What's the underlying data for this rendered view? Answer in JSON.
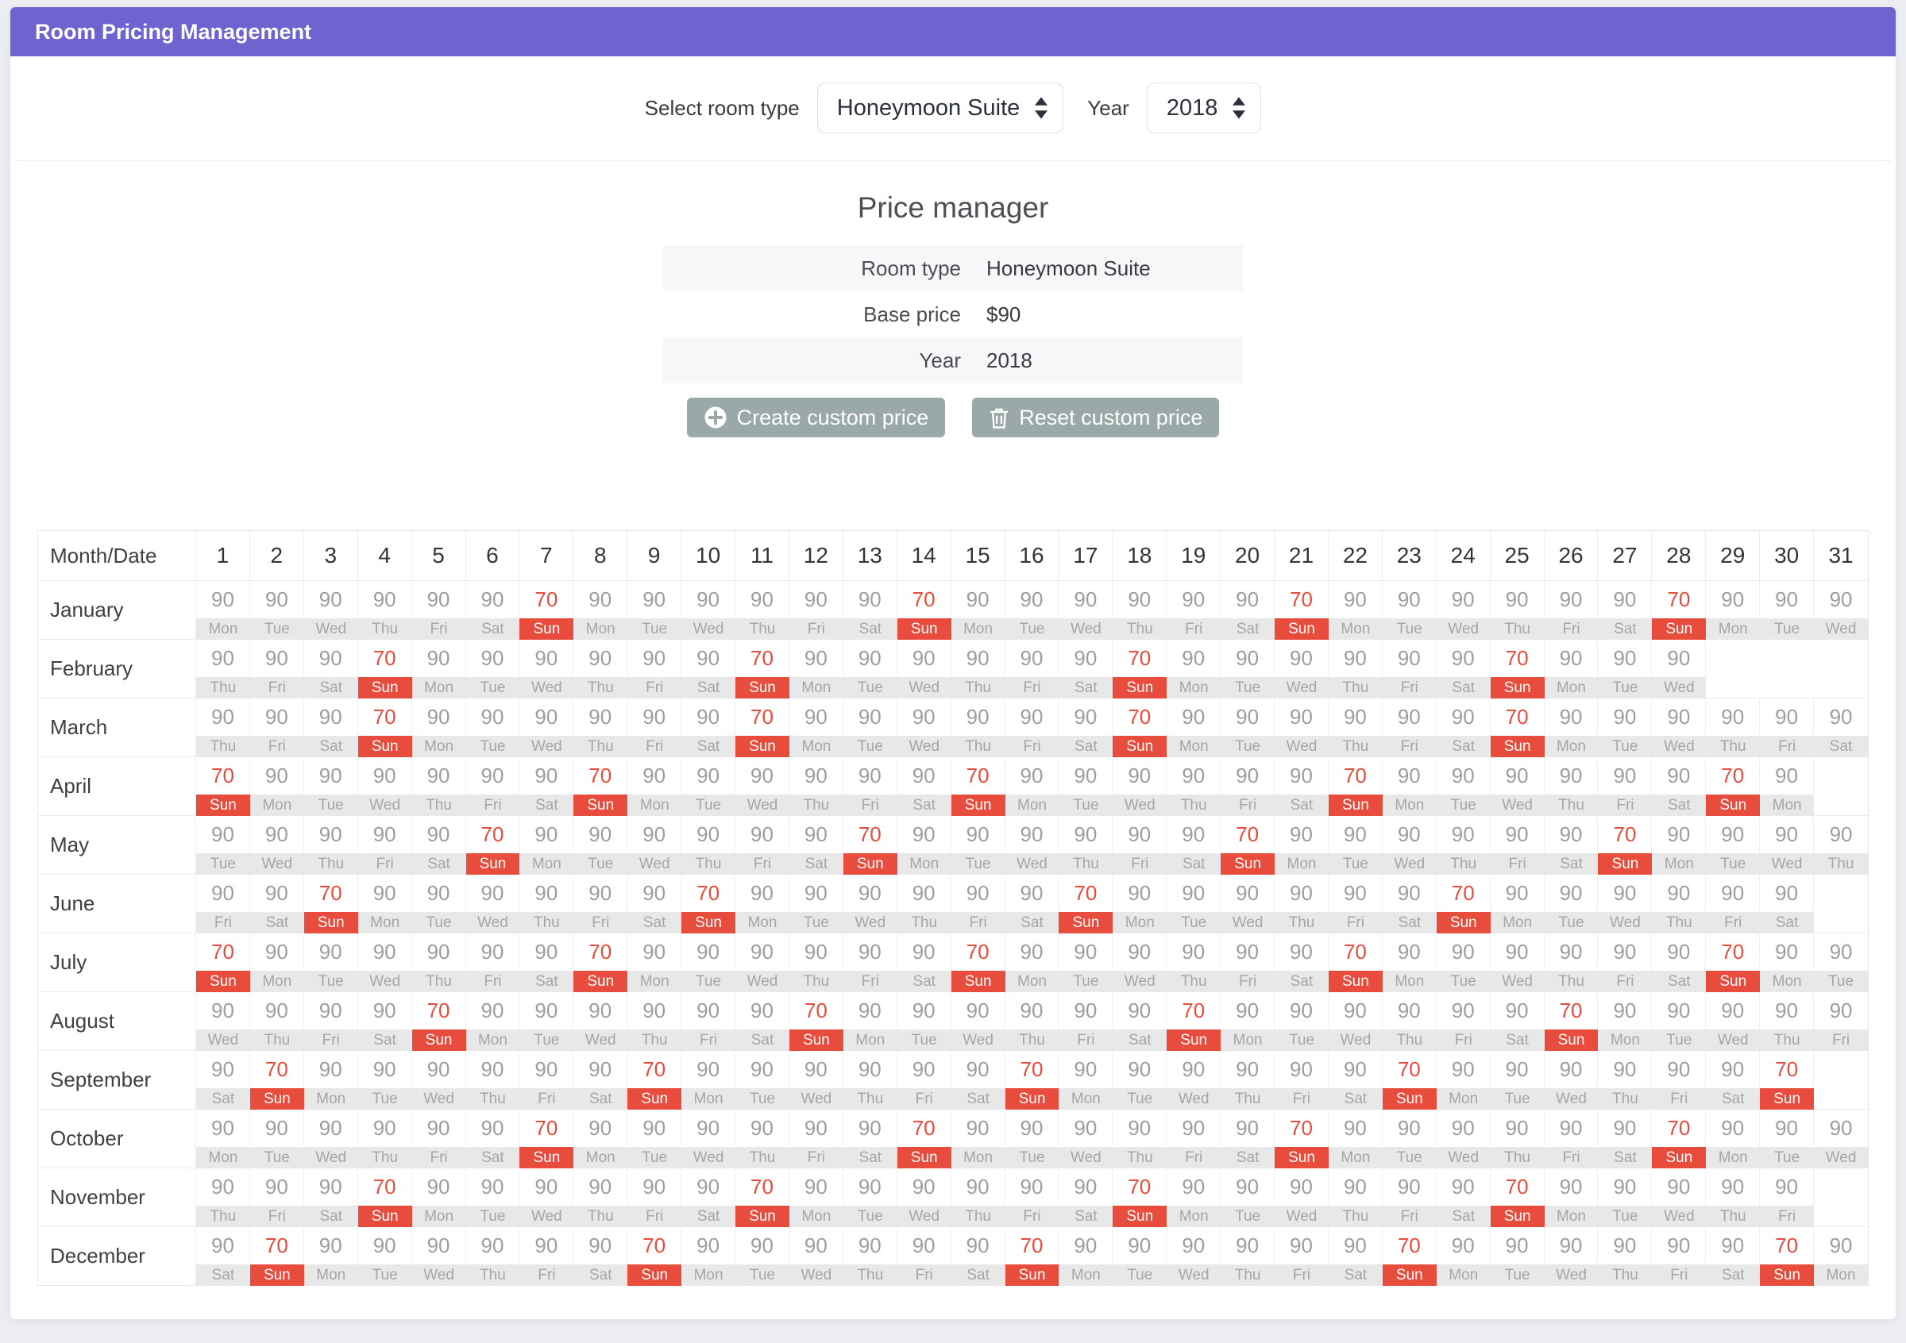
{
  "title_bar": {
    "title": "Room Pricing Management"
  },
  "controls": {
    "room_type_label": "Select room type",
    "room_type_value": "Honeymoon Suite",
    "year_label": "Year",
    "year_value": "2018"
  },
  "price_manager": {
    "heading": "Price manager",
    "rows": [
      {
        "label": "Room type",
        "value": "Honeymoon Suite"
      },
      {
        "label": "Base price",
        "value": "$90"
      },
      {
        "label": "Year",
        "value": "2018"
      }
    ],
    "buttons": {
      "create": "Create custom price",
      "reset": "Reset custom price"
    }
  },
  "calendar": {
    "corner_label": "Month/Date",
    "day_numbers": [
      1,
      2,
      3,
      4,
      5,
      6,
      7,
      8,
      9,
      10,
      11,
      12,
      13,
      14,
      15,
      16,
      17,
      18,
      19,
      20,
      21,
      22,
      23,
      24,
      25,
      26,
      27,
      28,
      29,
      30,
      31
    ],
    "base_price": 90,
    "sunday_price": 70,
    "months": [
      {
        "name": "January",
        "dows": [
          "Mon",
          "Tue",
          "Wed",
          "Thu",
          "Fri",
          "Sat",
          "Sun",
          "Mon",
          "Tue",
          "Wed",
          "Thu",
          "Fri",
          "Sat",
          "Sun",
          "Mon",
          "Tue",
          "Wed",
          "Thu",
          "Fri",
          "Sat",
          "Sun",
          "Mon",
          "Tue",
          "Wed",
          "Thu",
          "Fri",
          "Sat",
          "Sun",
          "Mon",
          "Tue",
          "Wed"
        ],
        "prices": [
          90,
          90,
          90,
          90,
          90,
          90,
          70,
          90,
          90,
          90,
          90,
          90,
          90,
          70,
          90,
          90,
          90,
          90,
          90,
          90,
          70,
          90,
          90,
          90,
          90,
          90,
          90,
          70,
          90,
          90,
          90
        ]
      },
      {
        "name": "February",
        "dows": [
          "Thu",
          "Fri",
          "Sat",
          "Sun",
          "Mon",
          "Tue",
          "Wed",
          "Thu",
          "Fri",
          "Sat",
          "Sun",
          "Mon",
          "Tue",
          "Wed",
          "Thu",
          "Fri",
          "Sat",
          "Sun",
          "Mon",
          "Tue",
          "Wed",
          "Thu",
          "Fri",
          "Sat",
          "Sun",
          "Mon",
          "Tue",
          "Wed"
        ],
        "prices": [
          90,
          90,
          90,
          70,
          90,
          90,
          90,
          90,
          90,
          90,
          70,
          90,
          90,
          90,
          90,
          90,
          90,
          70,
          90,
          90,
          90,
          90,
          90,
          90,
          70,
          90,
          90,
          90
        ]
      },
      {
        "name": "March",
        "dows": [
          "Thu",
          "Fri",
          "Sat",
          "Sun",
          "Mon",
          "Tue",
          "Wed",
          "Thu",
          "Fri",
          "Sat",
          "Sun",
          "Mon",
          "Tue",
          "Wed",
          "Thu",
          "Fri",
          "Sat",
          "Sun",
          "Mon",
          "Tue",
          "Wed",
          "Thu",
          "Fri",
          "Sat",
          "Sun",
          "Mon",
          "Tue",
          "Wed",
          "Thu",
          "Fri",
          "Sat"
        ],
        "prices": [
          90,
          90,
          90,
          70,
          90,
          90,
          90,
          90,
          90,
          90,
          70,
          90,
          90,
          90,
          90,
          90,
          90,
          70,
          90,
          90,
          90,
          90,
          90,
          90,
          70,
          90,
          90,
          90,
          90,
          90,
          90
        ]
      },
      {
        "name": "April",
        "dows": [
          "Sun",
          "Mon",
          "Tue",
          "Wed",
          "Thu",
          "Fri",
          "Sat",
          "Sun",
          "Mon",
          "Tue",
          "Wed",
          "Thu",
          "Fri",
          "Sat",
          "Sun",
          "Mon",
          "Tue",
          "Wed",
          "Thu",
          "Fri",
          "Sat",
          "Sun",
          "Mon",
          "Tue",
          "Wed",
          "Thu",
          "Fri",
          "Sat",
          "Sun",
          "Mon"
        ],
        "prices": [
          70,
          90,
          90,
          90,
          90,
          90,
          90,
          70,
          90,
          90,
          90,
          90,
          90,
          90,
          70,
          90,
          90,
          90,
          90,
          90,
          90,
          70,
          90,
          90,
          90,
          90,
          90,
          90,
          70,
          90
        ]
      },
      {
        "name": "May",
        "dows": [
          "Tue",
          "Wed",
          "Thu",
          "Fri",
          "Sat",
          "Sun",
          "Mon",
          "Tue",
          "Wed",
          "Thu",
          "Fri",
          "Sat",
          "Sun",
          "Mon",
          "Tue",
          "Wed",
          "Thu",
          "Fri",
          "Sat",
          "Sun",
          "Mon",
          "Tue",
          "Wed",
          "Thu",
          "Fri",
          "Sat",
          "Sun",
          "Mon",
          "Tue",
          "Wed",
          "Thu"
        ],
        "prices": [
          90,
          90,
          90,
          90,
          90,
          70,
          90,
          90,
          90,
          90,
          90,
          90,
          70,
          90,
          90,
          90,
          90,
          90,
          90,
          70,
          90,
          90,
          90,
          90,
          90,
          90,
          70,
          90,
          90,
          90,
          90
        ]
      },
      {
        "name": "June",
        "dows": [
          "Fri",
          "Sat",
          "Sun",
          "Mon",
          "Tue",
          "Wed",
          "Thu",
          "Fri",
          "Sat",
          "Sun",
          "Mon",
          "Tue",
          "Wed",
          "Thu",
          "Fri",
          "Sat",
          "Sun",
          "Mon",
          "Tue",
          "Wed",
          "Thu",
          "Fri",
          "Sat",
          "Sun",
          "Mon",
          "Tue",
          "Wed",
          "Thu",
          "Fri",
          "Sat"
        ],
        "prices": [
          90,
          90,
          70,
          90,
          90,
          90,
          90,
          90,
          90,
          70,
          90,
          90,
          90,
          90,
          90,
          90,
          70,
          90,
          90,
          90,
          90,
          90,
          90,
          70,
          90,
          90,
          90,
          90,
          90,
          90
        ]
      },
      {
        "name": "July",
        "dows": [
          "Sun",
          "Mon",
          "Tue",
          "Wed",
          "Thu",
          "Fri",
          "Sat",
          "Sun",
          "Mon",
          "Tue",
          "Wed",
          "Thu",
          "Fri",
          "Sat",
          "Sun",
          "Mon",
          "Tue",
          "Wed",
          "Thu",
          "Fri",
          "Sat",
          "Sun",
          "Mon",
          "Tue",
          "Wed",
          "Thu",
          "Fri",
          "Sat",
          "Sun",
          "Mon",
          "Tue"
        ],
        "prices": [
          70,
          90,
          90,
          90,
          90,
          90,
          90,
          70,
          90,
          90,
          90,
          90,
          90,
          90,
          70,
          90,
          90,
          90,
          90,
          90,
          90,
          70,
          90,
          90,
          90,
          90,
          90,
          90,
          70,
          90,
          90
        ]
      },
      {
        "name": "August",
        "dows": [
          "Wed",
          "Thu",
          "Fri",
          "Sat",
          "Sun",
          "Mon",
          "Tue",
          "Wed",
          "Thu",
          "Fri",
          "Sat",
          "Sun",
          "Mon",
          "Tue",
          "Wed",
          "Thu",
          "Fri",
          "Sat",
          "Sun",
          "Mon",
          "Tue",
          "Wed",
          "Thu",
          "Fri",
          "Sat",
          "Sun",
          "Mon",
          "Tue",
          "Wed",
          "Thu",
          "Fri"
        ],
        "prices": [
          90,
          90,
          90,
          90,
          70,
          90,
          90,
          90,
          90,
          90,
          90,
          70,
          90,
          90,
          90,
          90,
          90,
          90,
          70,
          90,
          90,
          90,
          90,
          90,
          90,
          70,
          90,
          90,
          90,
          90,
          90
        ]
      },
      {
        "name": "September",
        "dows": [
          "Sat",
          "Sun",
          "Mon",
          "Tue",
          "Wed",
          "Thu",
          "Fri",
          "Sat",
          "Sun",
          "Mon",
          "Tue",
          "Wed",
          "Thu",
          "Fri",
          "Sat",
          "Sun",
          "Mon",
          "Tue",
          "Wed",
          "Thu",
          "Fri",
          "Sat",
          "Sun",
          "Mon",
          "Tue",
          "Wed",
          "Thu",
          "Fri",
          "Sat",
          "Sun"
        ],
        "prices": [
          90,
          70,
          90,
          90,
          90,
          90,
          90,
          90,
          70,
          90,
          90,
          90,
          90,
          90,
          90,
          70,
          90,
          90,
          90,
          90,
          90,
          90,
          70,
          90,
          90,
          90,
          90,
          90,
          90,
          70
        ]
      },
      {
        "name": "October",
        "dows": [
          "Mon",
          "Tue",
          "Wed",
          "Thu",
          "Fri",
          "Sat",
          "Sun",
          "Mon",
          "Tue",
          "Wed",
          "Thu",
          "Fri",
          "Sat",
          "Sun",
          "Mon",
          "Tue",
          "Wed",
          "Thu",
          "Fri",
          "Sat",
          "Sun",
          "Mon",
          "Tue",
          "Wed",
          "Thu",
          "Fri",
          "Sat",
          "Sun",
          "Mon",
          "Tue",
          "Wed"
        ],
        "prices": [
          90,
          90,
          90,
          90,
          90,
          90,
          70,
          90,
          90,
          90,
          90,
          90,
          90,
          70,
          90,
          90,
          90,
          90,
          90,
          90,
          70,
          90,
          90,
          90,
          90,
          90,
          90,
          70,
          90,
          90,
          90
        ]
      },
      {
        "name": "November",
        "dows": [
          "Thu",
          "Fri",
          "Sat",
          "Sun",
          "Mon",
          "Tue",
          "Wed",
          "Thu",
          "Fri",
          "Sat",
          "Sun",
          "Mon",
          "Tue",
          "Wed",
          "Thu",
          "Fri",
          "Sat",
          "Sun",
          "Mon",
          "Tue",
          "Wed",
          "Thu",
          "Fri",
          "Sat",
          "Sun",
          "Mon",
          "Tue",
          "Wed",
          "Thu",
          "Fri"
        ],
        "prices": [
          90,
          90,
          90,
          70,
          90,
          90,
          90,
          90,
          90,
          90,
          70,
          90,
          90,
          90,
          90,
          90,
          90,
          70,
          90,
          90,
          90,
          90,
          90,
          90,
          70,
          90,
          90,
          90,
          90,
          90
        ]
      },
      {
        "name": "December",
        "dows": [
          "Sat",
          "Sun",
          "Mon",
          "Tue",
          "Wed",
          "Thu",
          "Fri",
          "Sat",
          "Sun",
          "Mon",
          "Tue",
          "Wed",
          "Thu",
          "Fri",
          "Sat",
          "Sun",
          "Mon",
          "Tue",
          "Wed",
          "Thu",
          "Fri",
          "Sat",
          "Sun",
          "Mon",
          "Tue",
          "Wed",
          "Thu",
          "Fri",
          "Sat",
          "Sun",
          "Mon"
        ],
        "prices": [
          90,
          70,
          90,
          90,
          90,
          90,
          90,
          90,
          70,
          90,
          90,
          90,
          90,
          90,
          90,
          70,
          90,
          90,
          90,
          90,
          90,
          90,
          70,
          90,
          90,
          90,
          90,
          90,
          90,
          70,
          90
        ]
      }
    ]
  },
  "colors": {
    "header_bg": "#6e63cf",
    "sunday_red": "#e74c3c",
    "button_bg": "#9aa8a8",
    "price_gray": "#9e9e9e",
    "dow_strip_bg": "#e8e8e8",
    "page_bg": "#ecedf3"
  }
}
